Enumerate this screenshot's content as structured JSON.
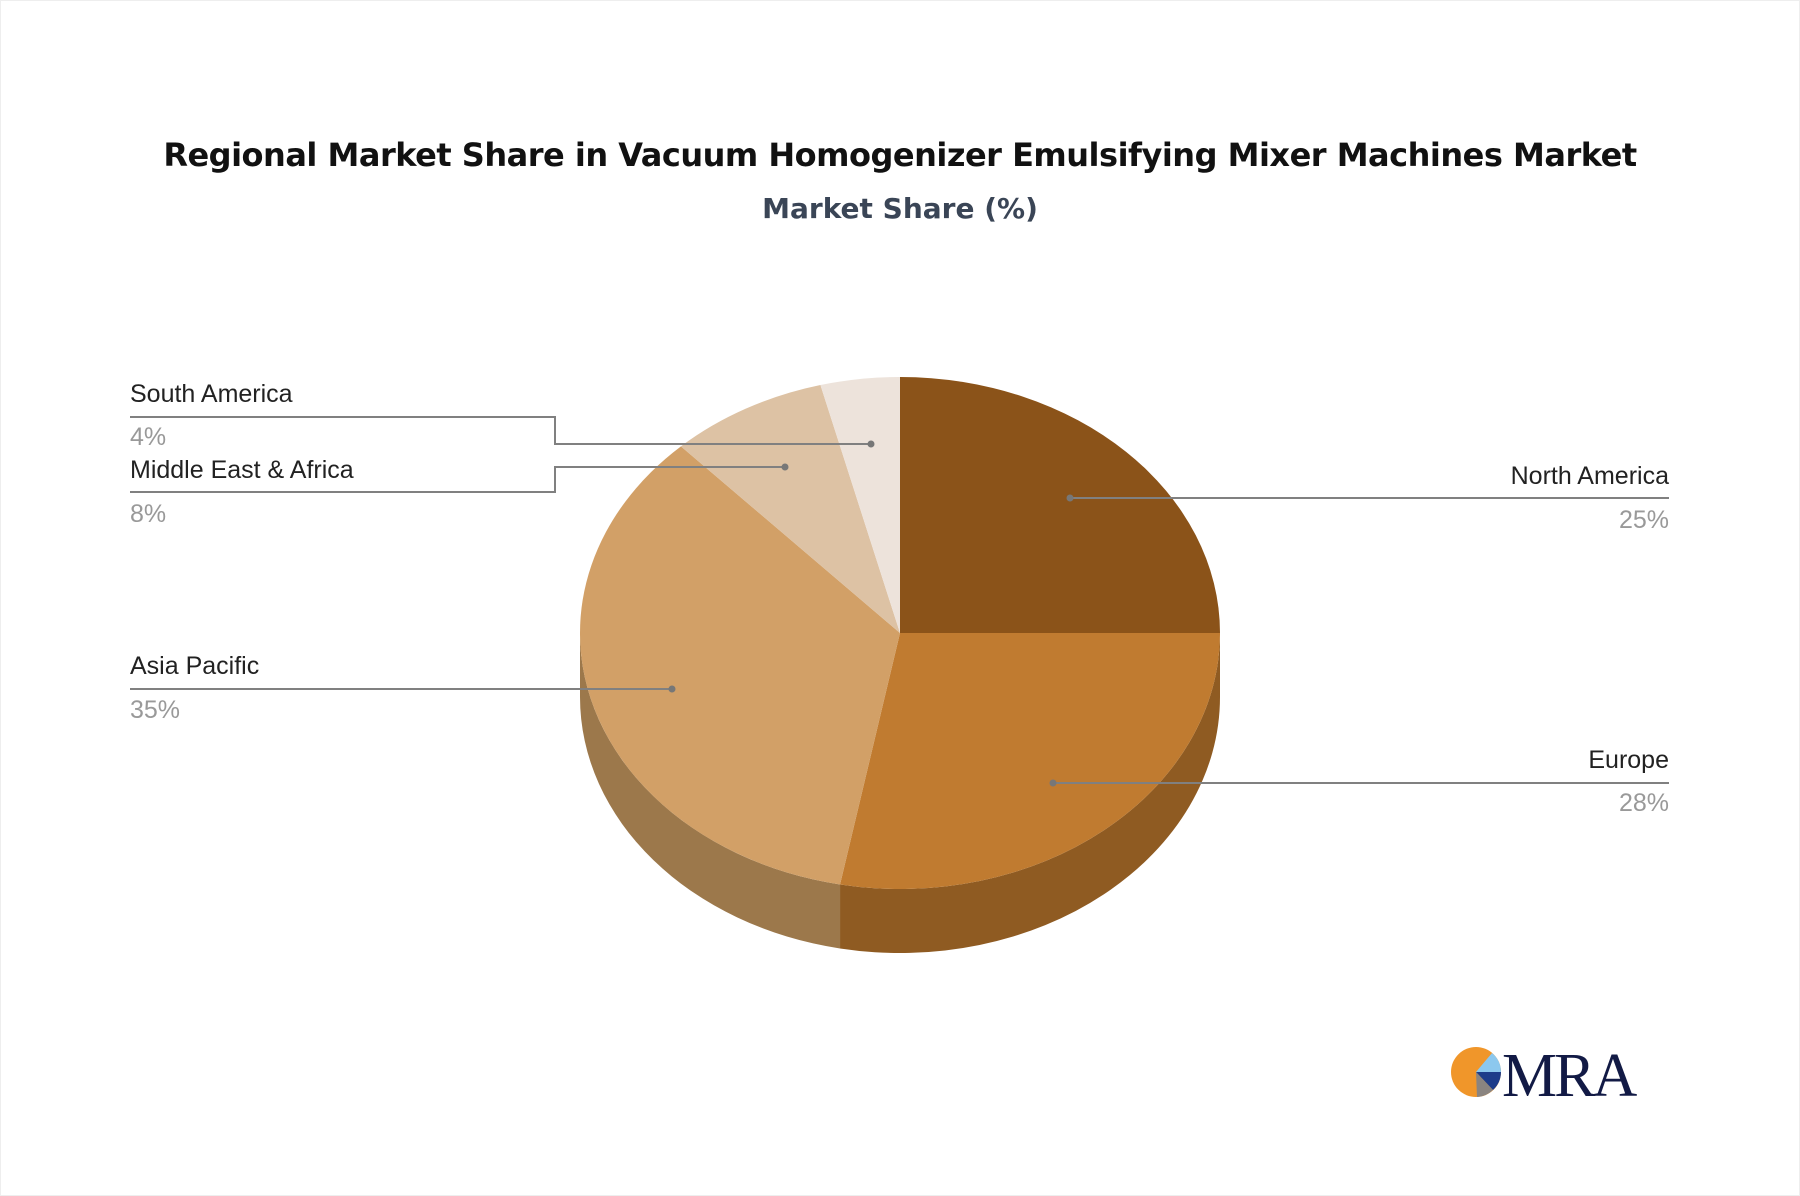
{
  "chart_data": {
    "type": "pie",
    "style": "3d",
    "title": "Regional Market Share in Vacuum Homogenizer Emulsifying Mixer Machines Market",
    "subtitle": "Market Share (%)",
    "categories": [
      "North America",
      "Europe",
      "Asia Pacific",
      "Middle East & Africa",
      "South America"
    ],
    "values": [
      25,
      28,
      35,
      8,
      4
    ],
    "labels": [
      "25%",
      "28%",
      "35%",
      "8%",
      "4%"
    ],
    "colors": [
      "#8B5319",
      "#C07B30",
      "#D2A067",
      "#DDC2A4",
      "#EDE3DB"
    ],
    "side_colors": [
      "#6E4214",
      "#8F5B22",
      "#9C784B",
      "#A8937B",
      "#B5ADA6"
    ]
  },
  "logo": {
    "text": "MRA"
  }
}
